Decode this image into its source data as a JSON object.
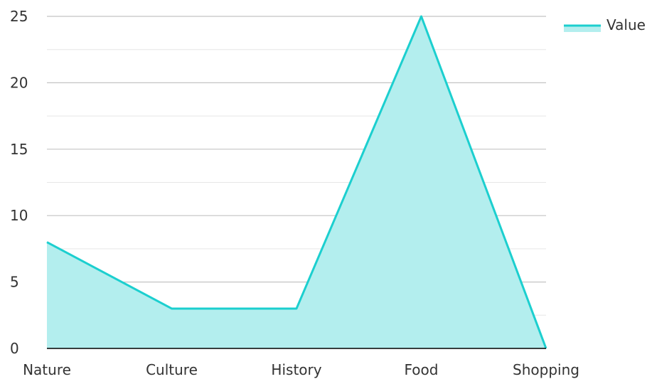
{
  "chart_data": {
    "type": "area",
    "categories": [
      "Nature",
      "Culture",
      "History",
      "Food",
      "Shopping"
    ],
    "series": [
      {
        "name": "Value",
        "values": [
          8,
          3,
          3,
          25,
          0
        ]
      }
    ],
    "ylim": [
      0,
      25
    ],
    "yticks": [
      0,
      5,
      10,
      15,
      20,
      25
    ],
    "grid": true,
    "legend_position": "top-right",
    "colors": {
      "line": "#1ccfcf",
      "fill": "#b3eeee",
      "grid_major": "#c4c4c4",
      "grid_minor": "#e6e6e6",
      "axis": "#000000"
    }
  }
}
